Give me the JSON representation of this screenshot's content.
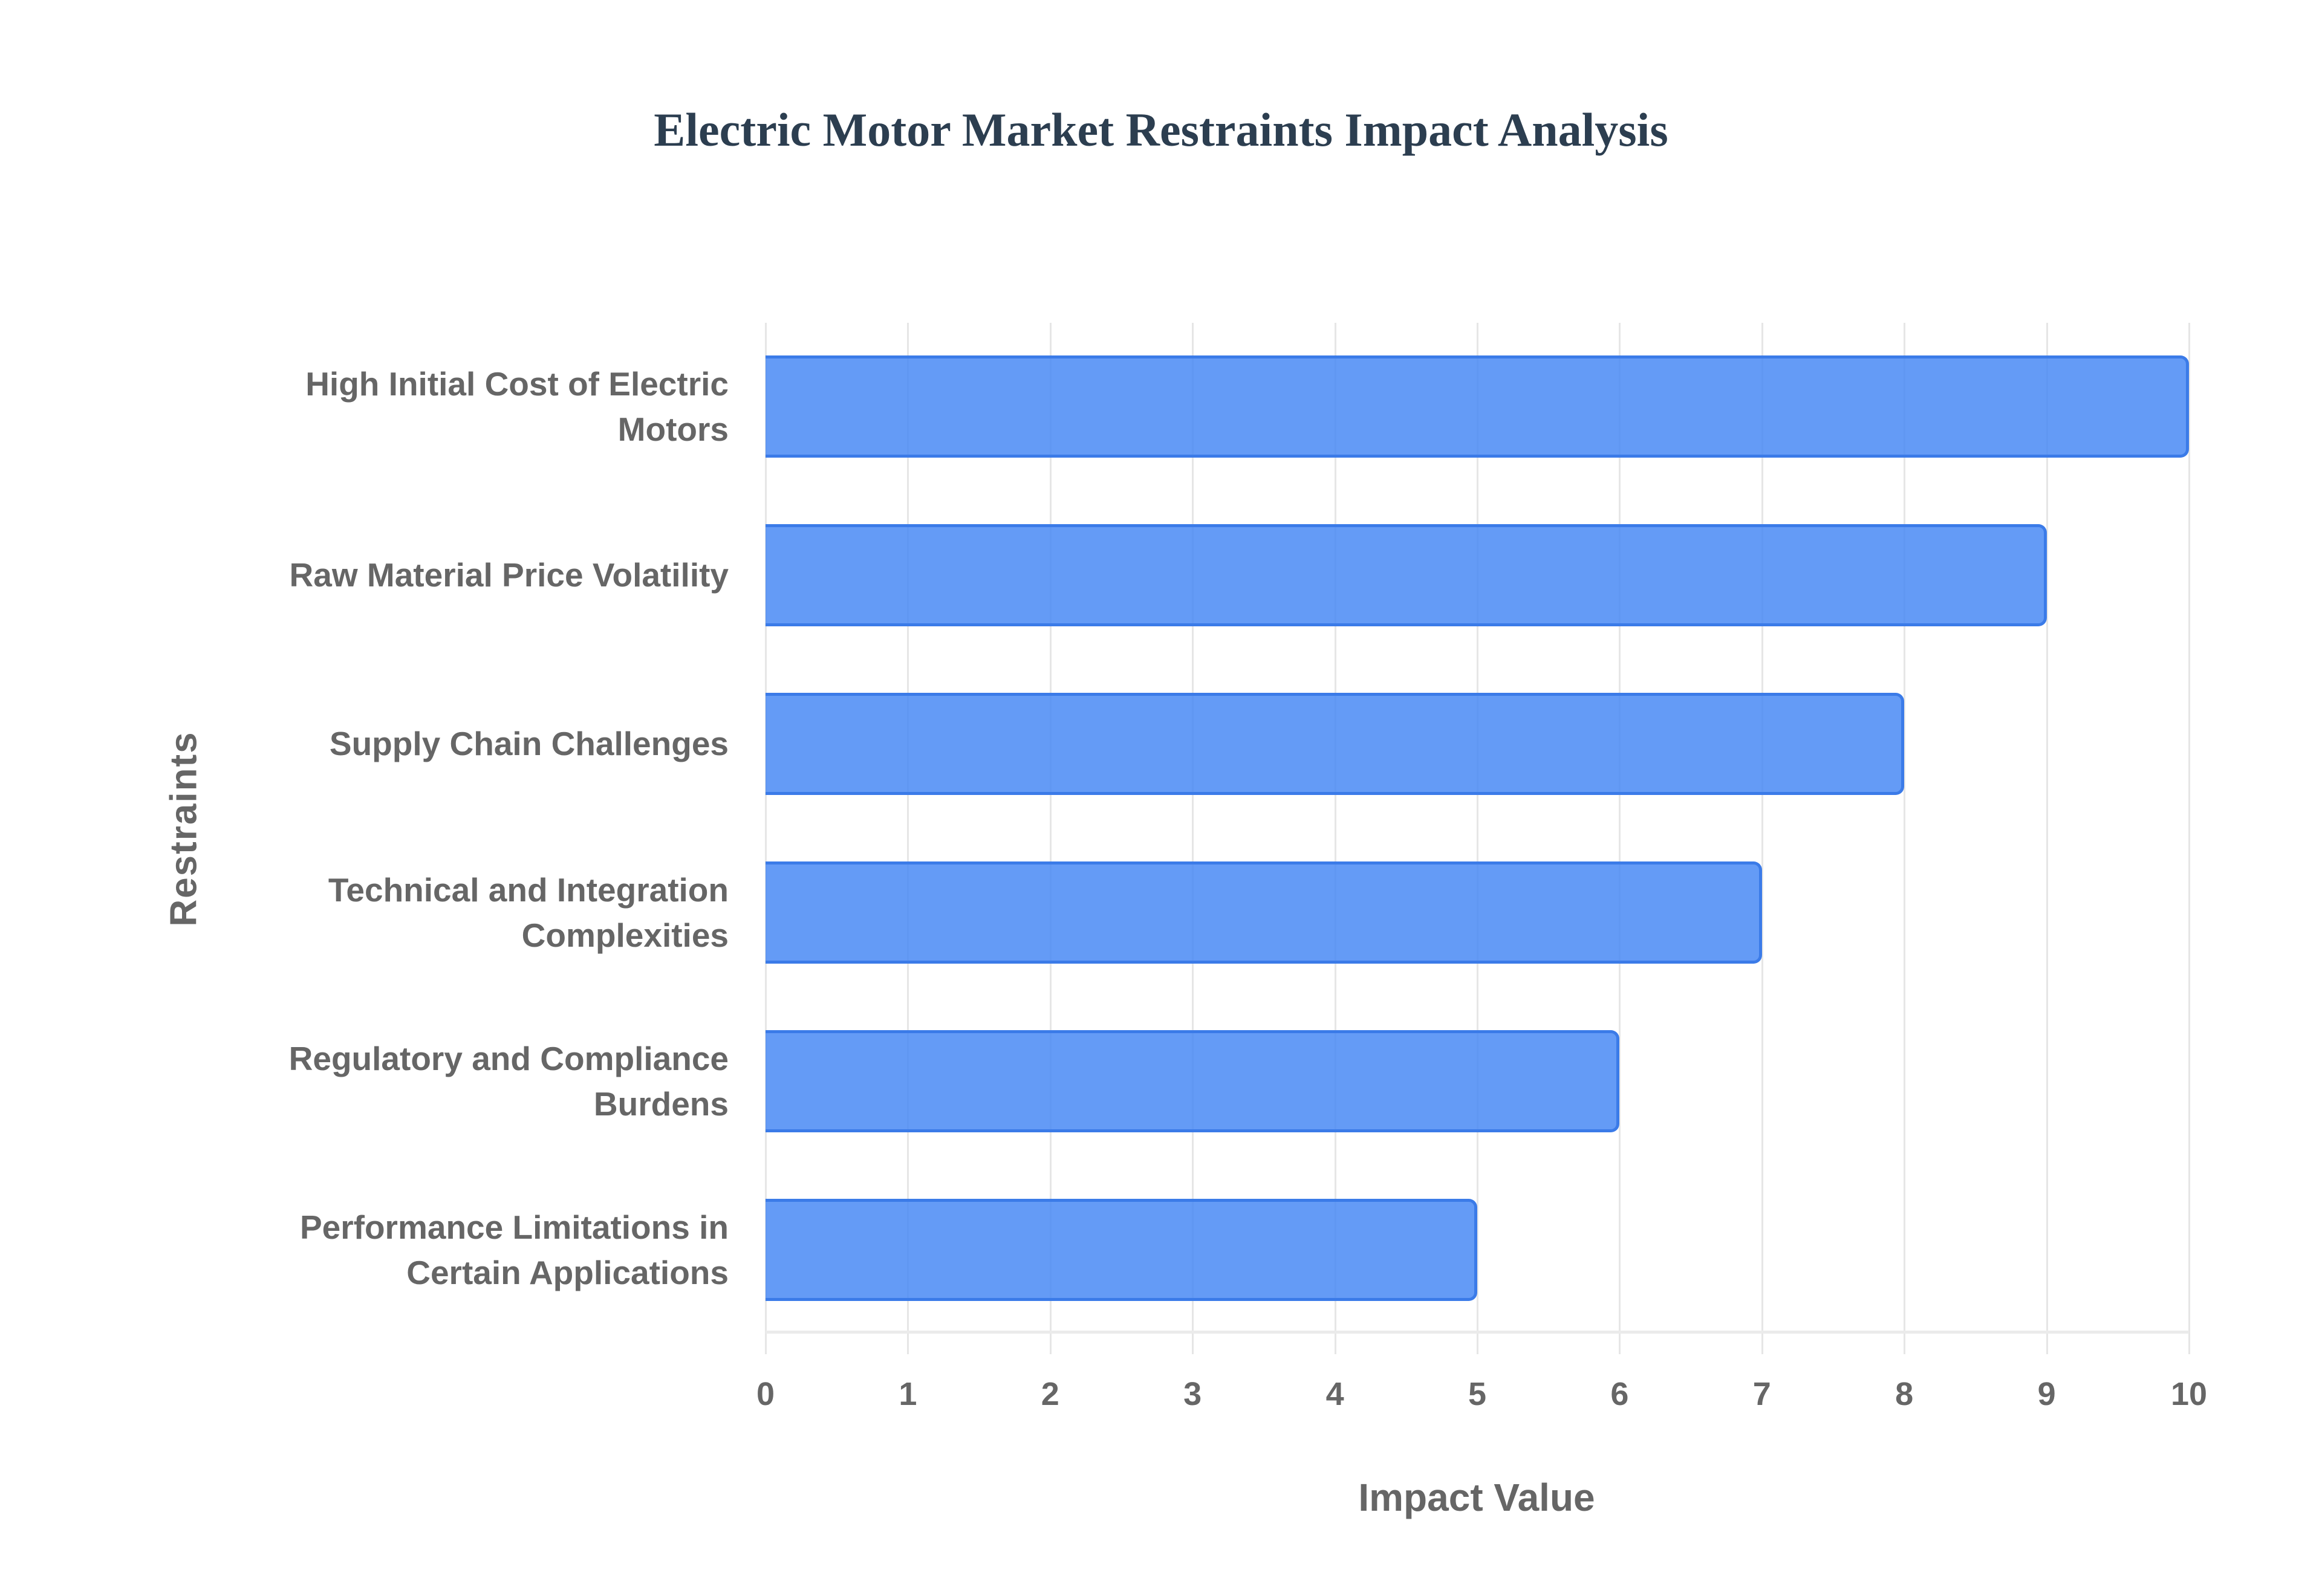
{
  "chart_data": {
    "type": "bar",
    "orientation": "horizontal",
    "title": "Electric Motor Market Restraints Impact Analysis",
    "xlabel": "Impact Value",
    "ylabel": "Restraints",
    "categories": [
      "High Initial Cost of Electric Motors",
      "Raw Material Price Volatility",
      "Supply Chain Challenges",
      "Technical and Integration Complexities",
      "Regulatory and Compliance Burdens",
      "Performance Limitations in Certain Applications"
    ],
    "values": [
      10,
      9,
      8,
      7,
      6,
      5
    ],
    "xlim": [
      0,
      10
    ],
    "x_ticks": [
      "0",
      "1",
      "2",
      "3",
      "4",
      "5",
      "6",
      "7",
      "8",
      "9",
      "10"
    ],
    "grid": true,
    "legend": null,
    "colors": {
      "bar_fill": "#6199f4",
      "bar_border": "#3b7be8",
      "title": "#2c3e50",
      "axis_text": "#666666"
    }
  },
  "labels": {
    "cat0": [
      "High Initial Cost of Electric",
      "Motors"
    ],
    "cat1": [
      "Raw Material Price Volatility"
    ],
    "cat2": [
      "Supply Chain Challenges"
    ],
    "cat3": [
      "Technical and Integration",
      "Complexities"
    ],
    "cat4": [
      "Regulatory and Compliance",
      "Burdens"
    ],
    "cat5": [
      "Performance Limitations in",
      "Certain Applications"
    ]
  }
}
